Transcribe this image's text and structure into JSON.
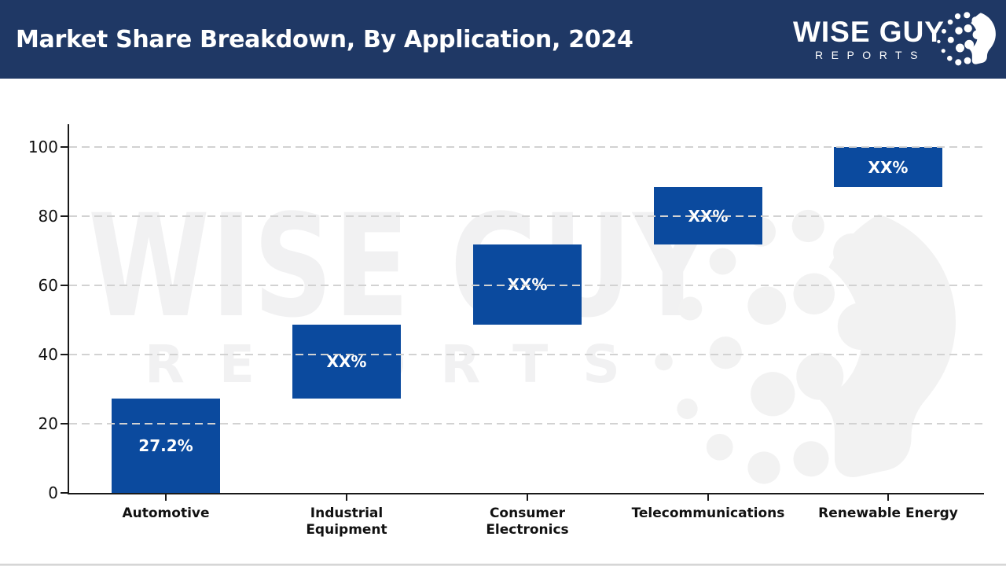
{
  "header": {
    "title": "Market Share Breakdown, By Application, 2024",
    "logo": {
      "line1": "WISE GUY",
      "line2": "REPORTS"
    },
    "bg_color": "#1F3865"
  },
  "watermark": {
    "line1": "WISE GUY",
    "line2": "REPORTS"
  },
  "chart_data": {
    "type": "bar",
    "subtype": "waterfall",
    "title": "Market Share Breakdown, By Application, 2024",
    "xlabel": "",
    "ylabel": "",
    "categories": [
      "Automotive",
      "Industrial Equipment",
      "Consumer Electronics",
      "Telecommunications",
      "Renewable Energy"
    ],
    "category_display": [
      "Automotive",
      "Industrial\nEquipment",
      "Consumer\nElectronics",
      "Telecommunications",
      "Renewable Energy"
    ],
    "segments": [
      {
        "category": "Automotive",
        "start": 0,
        "end": 27.2,
        "value": 27.2,
        "label": "27.2%"
      },
      {
        "category": "Industrial Equipment",
        "start": 27.2,
        "end": 48.7,
        "value": 21.5,
        "label": "XX%"
      },
      {
        "category": "Consumer Electronics",
        "start": 48.7,
        "end": 71.9,
        "value": 23.2,
        "label": "XX%"
      },
      {
        "category": "Telecommunications",
        "start": 71.9,
        "end": 88.3,
        "value": 16.4,
        "label": "XX%"
      },
      {
        "category": "Renewable Energy",
        "start": 88.3,
        "end": 100.0,
        "value": 11.7,
        "label": "XX%"
      }
    ],
    "y_ticks": [
      0,
      20,
      40,
      60,
      80,
      100
    ],
    "ylim": [
      0,
      105
    ],
    "bar_color": "#0B4A9E",
    "grid": "horizontal-dashed",
    "gridline_color": "#d2d2d2",
    "legend": false
  }
}
